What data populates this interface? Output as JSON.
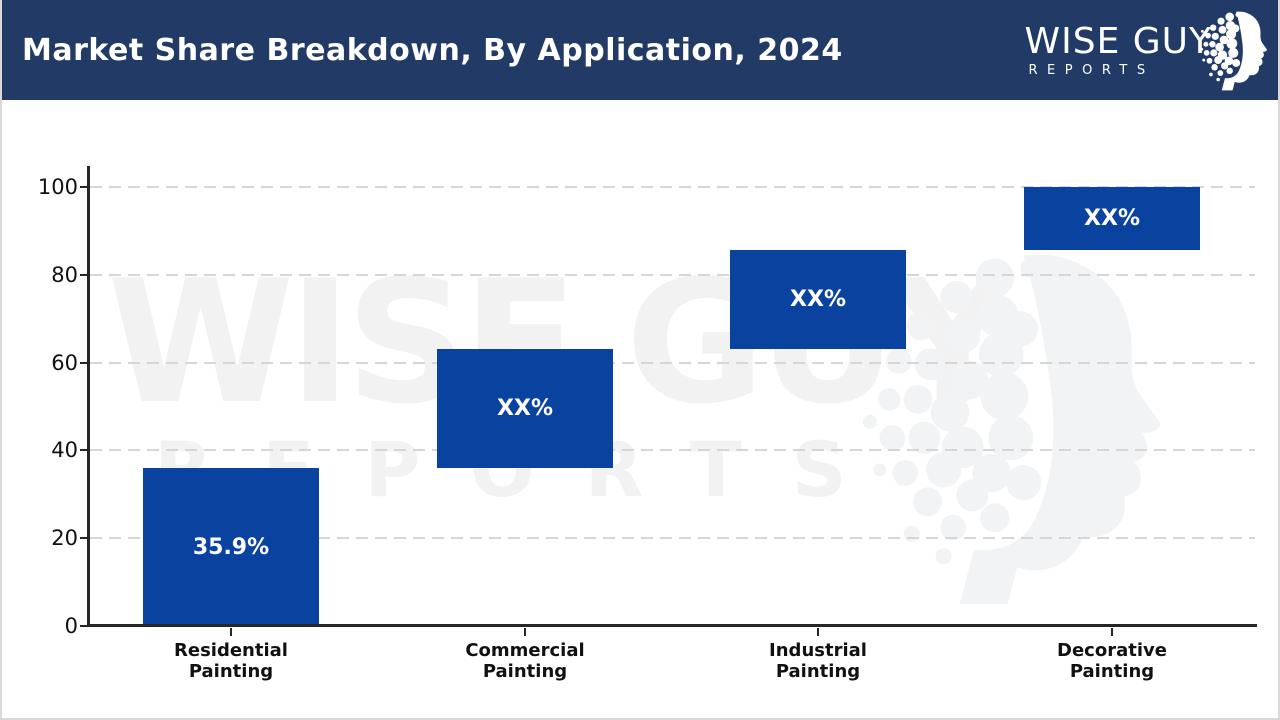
{
  "header": {
    "title": "Market Share Breakdown, By Application, 2024",
    "logo_line1": "WISE GUY",
    "logo_line2": "REPORTS"
  },
  "watermark": {
    "line1": "WISE GUY",
    "line2": "REPORTS"
  },
  "colors": {
    "header_bg": "#223a66",
    "bar": "#0a429f",
    "bar_label": "#ffffff",
    "watermark": "#f2f2f2",
    "gridline": "#d6d6d6",
    "axis": "#262626",
    "page_border": "#d9d9d9"
  },
  "chart_data": {
    "type": "bar",
    "subtype": "waterfall",
    "title": "Market Share Breakdown, By Application, 2024",
    "categories": [
      "Residential Painting",
      "Commercial Painting",
      "Industrial Painting",
      "Decorative Painting"
    ],
    "series": [
      {
        "name": "Market Share (%)",
        "segments": [
          {
            "category": "Residential Painting",
            "start": 0,
            "end": 35.9,
            "label": "35.9%"
          },
          {
            "category": "Commercial Painting",
            "start": 35.9,
            "end": 63.0,
            "label": "XX%"
          },
          {
            "category": "Industrial Painting",
            "start": 63.0,
            "end": 85.6,
            "label": "XX%"
          },
          {
            "category": "Decorative Painting",
            "start": 85.6,
            "end": 100,
            "label": "XX%"
          }
        ]
      }
    ],
    "xlabel": "",
    "ylabel": "",
    "ylim": [
      0,
      100
    ],
    "yticks": [
      0,
      20,
      40,
      60,
      80,
      100
    ],
    "grid": "horizontal dashed",
    "legend": "none"
  }
}
